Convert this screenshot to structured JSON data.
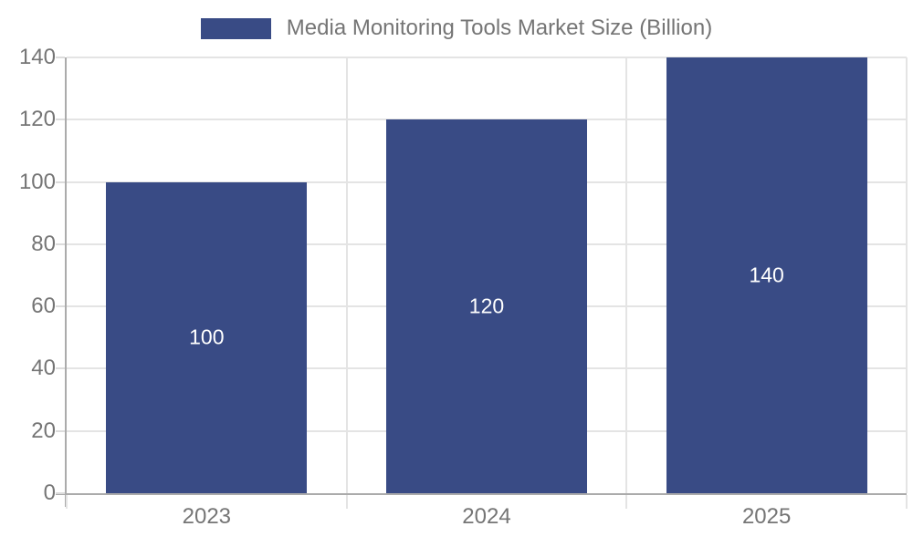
{
  "legend": {
    "swatch_icon": "legend-swatch",
    "label": "Media Monitoring Tools Market Size (Billion)"
  },
  "chart_data": {
    "type": "bar",
    "title": "Media Monitoring Tools Market Size (Billion)",
    "categories": [
      "2023",
      "2024",
      "2025"
    ],
    "values": [
      100,
      120,
      140
    ],
    "bar_value_labels": [
      "100",
      "120",
      "140"
    ],
    "xlabel": "",
    "ylabel": "",
    "ylim": [
      0,
      140
    ],
    "yticks": [
      0,
      20,
      40,
      60,
      80,
      100,
      120,
      140
    ],
    "grid": true,
    "legend_position": "top",
    "value_label_position": "inside-center",
    "colors": {
      "bar": "#394b85",
      "bar_label_text": "#ffffff",
      "grid": "#e4e4e4",
      "axis": "#ababab",
      "tick": "#dcdcdc",
      "text": "#757575",
      "background": "#ffffff"
    }
  }
}
